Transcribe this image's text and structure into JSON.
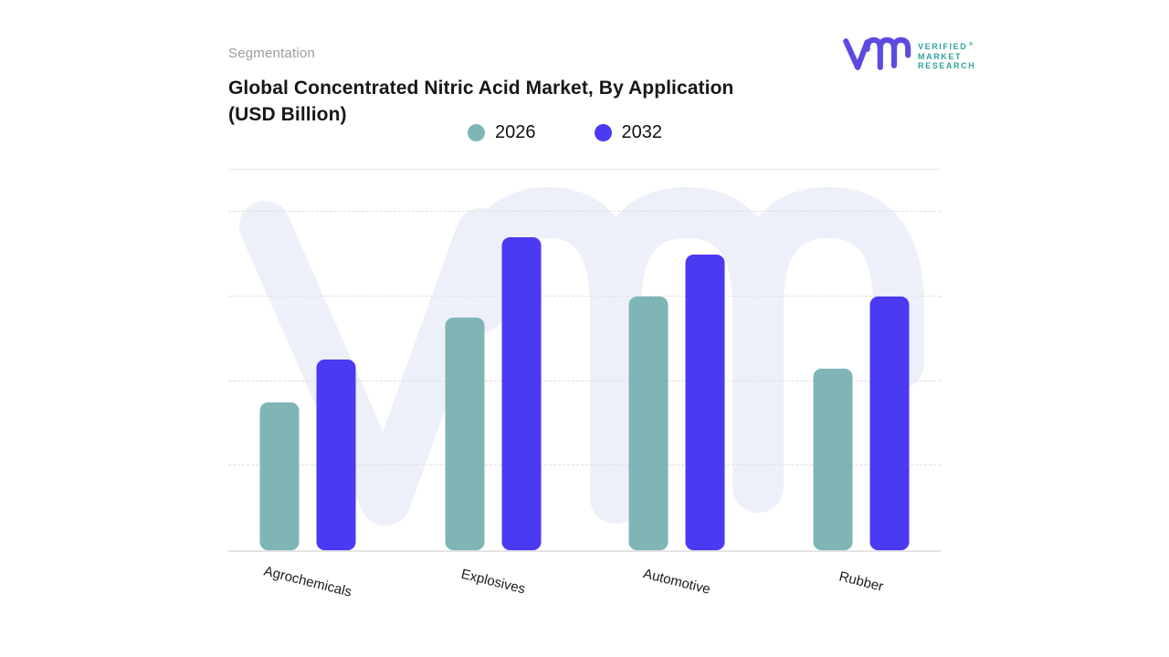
{
  "eyebrow": "Segmentation",
  "title": {
    "line1": "Global Concentrated Nitric Acid Market, By Application",
    "line2": "(USD Billion)"
  },
  "legend": [
    {
      "label": "2026",
      "color": "#7fb5b7"
    },
    {
      "label": "2032",
      "color": "#4c39f2"
    }
  ],
  "logo": {
    "text_lines": [
      "VERIFIED",
      "MARKET",
      "RESEARCH"
    ],
    "registered": "®",
    "mark_color": "#5b4be0",
    "text_color": "#2da39d"
  },
  "colors": {
    "series_2026": "#7fb5b7",
    "series_2032": "#4c39f2",
    "watermark": "#eef0f9",
    "gridline": "#dedede",
    "axis_line": "#e4e4e4",
    "title_text": "#181818",
    "eyebrow_text": "#9b9b9b"
  },
  "chart_data": {
    "type": "bar",
    "categories": [
      "Agrochemicals",
      "Explosives",
      "Automotive",
      "Rubber"
    ],
    "series": [
      {
        "name": "2026",
        "color": "#7fb5b7",
        "values": [
          1.75,
          2.75,
          3.0,
          2.15
        ]
      },
      {
        "name": "2032",
        "color": "#4c39f2",
        "values": [
          2.25,
          3.7,
          3.5,
          3.0
        ]
      }
    ],
    "title": "Global Concentrated Nitric Acid Market, By Application (USD Billion)",
    "xlabel": "",
    "ylabel": "",
    "ylim": [
      0,
      4.5
    ],
    "gridlines": {
      "horizontal": true,
      "style": "dashed",
      "at": [
        1,
        2,
        3,
        4
      ]
    },
    "y_axis_tick_labels": false,
    "legend_position": "top-center",
    "value_note": "Y axis is unlabeled in source image; values estimated in gridline units (1 gridline = 1 unit)"
  }
}
